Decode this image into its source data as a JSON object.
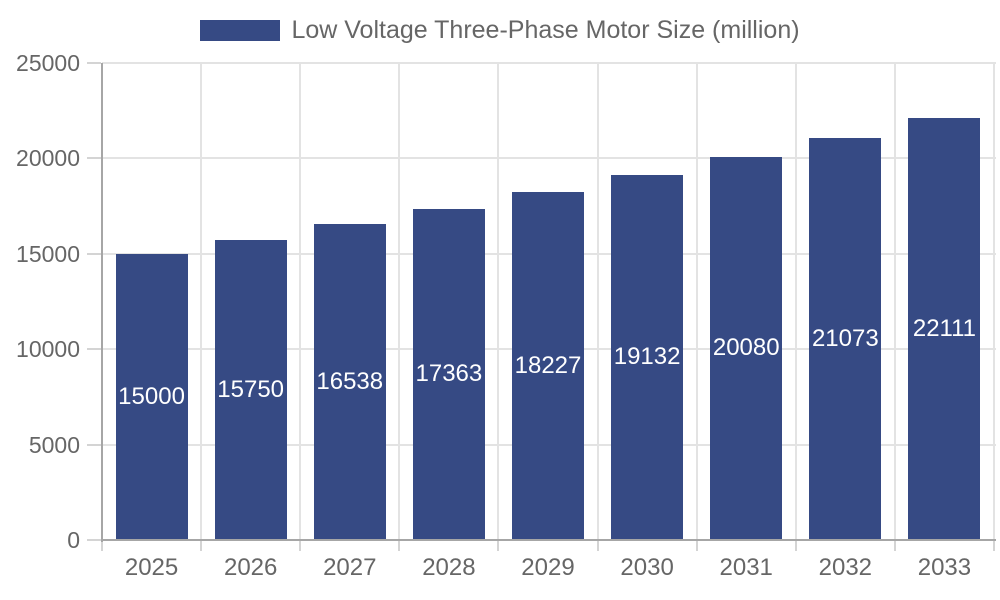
{
  "chart_data": {
    "type": "bar",
    "title": "Low Voltage Three-Phase Motor Size (million)",
    "categories": [
      "2025",
      "2026",
      "2027",
      "2028",
      "2029",
      "2030",
      "2031",
      "2032",
      "2033"
    ],
    "series": [
      {
        "name": "Low Voltage Three-Phase Motor Size (million)",
        "values": [
          15000,
          15750,
          16538,
          17363,
          18227,
          19132,
          20080,
          21073,
          22111
        ]
      }
    ],
    "xlabel": "",
    "ylabel": "",
    "ylim": [
      0,
      25000
    ],
    "y_ticks": [
      0,
      5000,
      10000,
      15000,
      20000,
      25000
    ],
    "grid": true,
    "legend_position": "top",
    "bar_color": "#364a84",
    "value_label_color": "#ffffff",
    "axis_text_color": "#666666",
    "gridline_color": "#e3e3e3",
    "axis_line_color": "#a6a6a6",
    "background_color": "#ffffff"
  }
}
